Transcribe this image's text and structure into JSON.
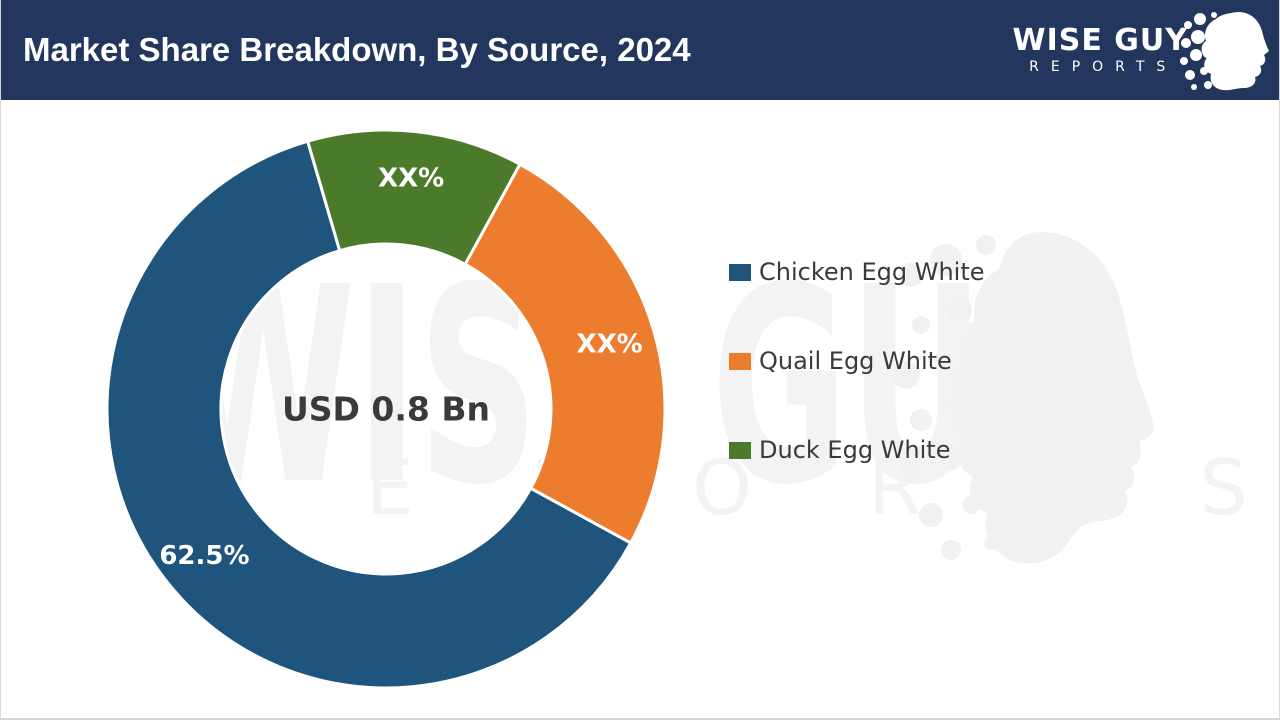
{
  "header": {
    "title": "Market Share Breakdown, By Source, 2024",
    "logo": {
      "line1": "WISE GUY",
      "line2": "REPORTS"
    }
  },
  "watermark": {
    "line1": "WISE GUY",
    "line2": "R E P O R T S"
  },
  "chart_data": {
    "type": "pie",
    "subtype": "donut",
    "title": "Market Share Breakdown, By Source, 2024",
    "center_label": "USD 0.8 Bn",
    "start_angle_deg": 118.7,
    "direction": "clockwise",
    "outer_radius_px": 279,
    "inner_radius_ratio": 0.59,
    "legend_position": "right",
    "segments": [
      {
        "name": "Chicken Egg White",
        "value_pct": 62.5,
        "label": "62.5%",
        "color": "#1f547d"
      },
      {
        "name": "Duck Egg White",
        "value_pct": 12.5,
        "label": "XX%",
        "color": "#4b7b2a"
      },
      {
        "name": "Quail Egg White",
        "value_pct": 25.0,
        "label": "XX%",
        "color": "#ec7d2e"
      }
    ],
    "legend": [
      {
        "label": "Chicken Egg White",
        "color": "#1f547d"
      },
      {
        "label": "Quail Egg White",
        "color": "#ec7d2e"
      },
      {
        "label": "Duck Egg White",
        "color": "#4b7b2a"
      }
    ]
  },
  "colors": {
    "header_bg": "#22365e",
    "text_dark": "#3a3a3a",
    "watermark": "#f3f3f3",
    "border": "#d9d9d9"
  }
}
